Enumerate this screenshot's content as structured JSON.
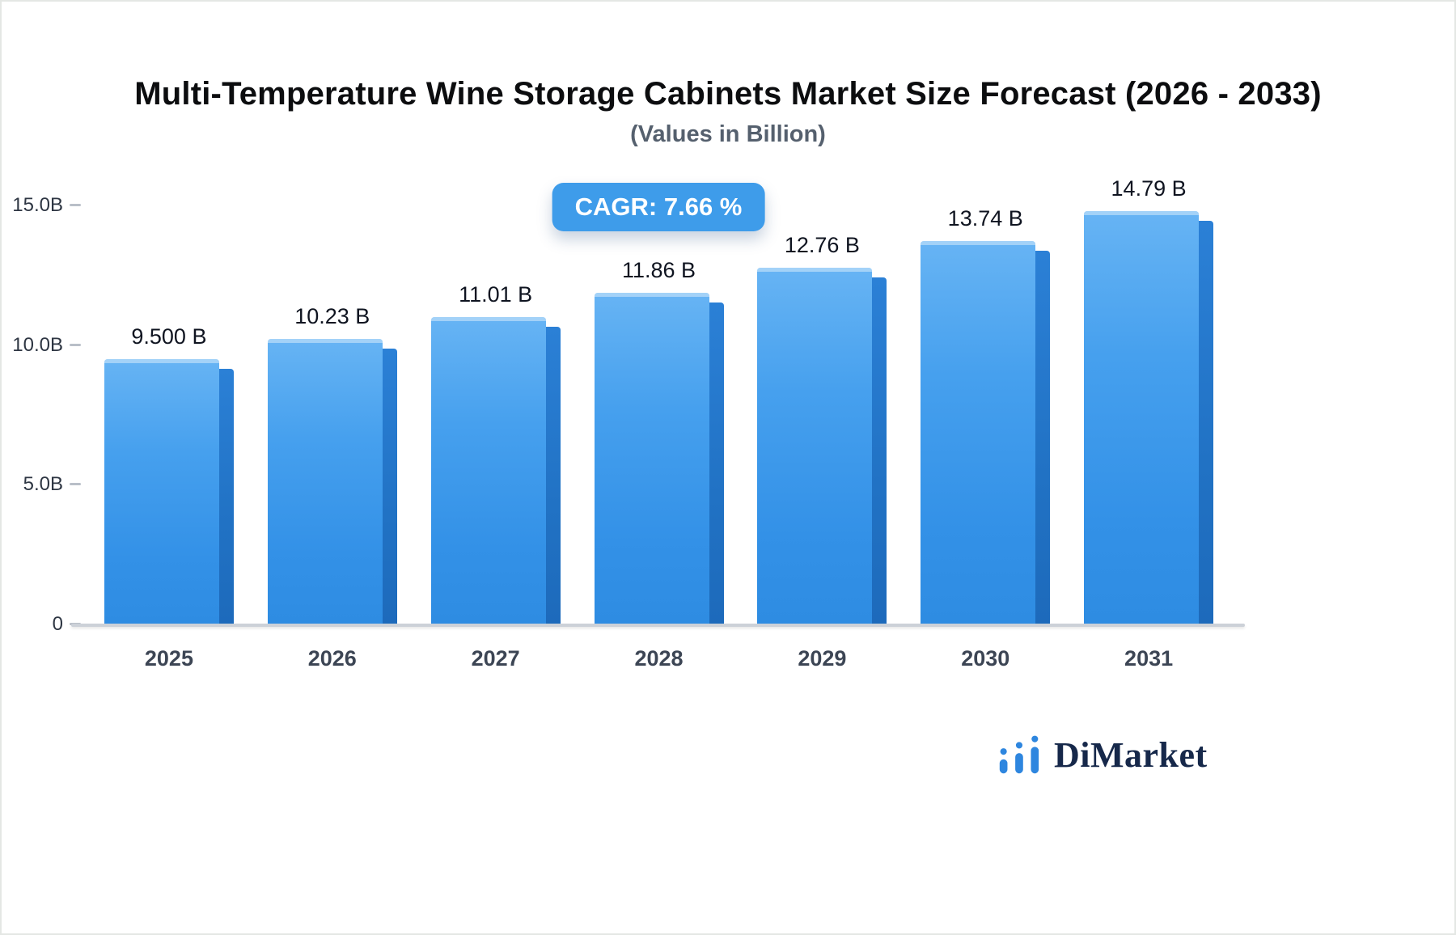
{
  "chart_data": {
    "type": "bar",
    "title": "Multi-Temperature Wine Storage Cabinets Market Size Forecast (2026 - 2033)",
    "subtitle": "(Values in Billion)",
    "cagr_label": "CAGR: 7.66 %",
    "categories": [
      "2025",
      "2026",
      "2027",
      "2028",
      "2029",
      "2030",
      "2031"
    ],
    "values": [
      9.5,
      10.23,
      11.01,
      11.86,
      12.76,
      13.74,
      14.79
    ],
    "value_labels": [
      "9.500 B",
      "10.23 B",
      "11.01 B",
      "11.86 B",
      "12.76 B",
      "13.74 B",
      "14.79 B"
    ],
    "ylabel": "",
    "xlabel": "",
    "ylim": [
      0,
      15
    ],
    "grid": "off",
    "legend": "none",
    "y_ticks": [
      {
        "label": "15.0B",
        "value": 15
      },
      {
        "label": "10.0B",
        "value": 10
      },
      {
        "label": "5.0B",
        "value": 5
      },
      {
        "label": "0",
        "value": 0
      }
    ],
    "bar_color": "#3b96ea",
    "bar_side_color": "#1f6fc4",
    "badge_color": "#3e9cea"
  },
  "logo": {
    "text": "DiMarket"
  }
}
